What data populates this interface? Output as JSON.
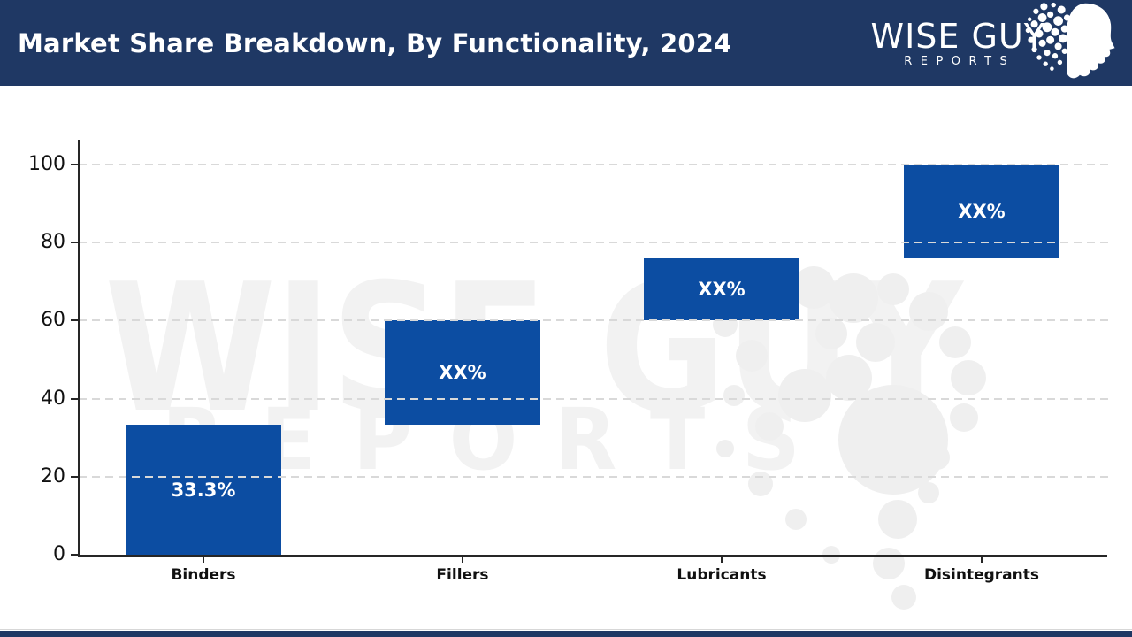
{
  "header": {
    "title": "Market Share Breakdown, By Functionality, 2024",
    "brand": {
      "line1": "WISE GUY",
      "line2": "REPORTS"
    }
  },
  "watermark": {
    "line1": "WISE GUY",
    "line2": "REPORTS"
  },
  "icons": {
    "logo_face": "dotted-face-profile",
    "watermark_face": "dotted-face-profile-light"
  },
  "colors": {
    "header_bg": "#1f3864",
    "footer_bg": "#1f3864",
    "bar": "#0c4da2",
    "bar_label": "#ffffff",
    "axis": "#262626",
    "tick_label": "#111111",
    "grid": "#d9d9d9",
    "watermark": "#f2f2f2",
    "title_text": "#ffffff"
  },
  "chart_data": {
    "type": "bar",
    "subtype": "waterfall",
    "title": "Market Share Breakdown, By Functionality, 2024",
    "categories": [
      "Binders",
      "Fillers",
      "Lubricants",
      "Disintegrants"
    ],
    "segments": [
      {
        "category": "Binders",
        "start": 0,
        "end": 33.3,
        "label": "33.3%"
      },
      {
        "category": "Fillers",
        "start": 33.3,
        "end": 60,
        "label": "XX%"
      },
      {
        "category": "Lubricants",
        "start": 60,
        "end": 76,
        "label": "XX%"
      },
      {
        "category": "Disintegrants",
        "start": 76,
        "end": 100,
        "label": "XX%"
      }
    ],
    "values_approx": [
      33.3,
      26.7,
      16,
      24
    ],
    "xlabel": "",
    "ylabel": "",
    "ylim": [
      0,
      100
    ],
    "yticks": [
      0,
      20,
      40,
      60,
      80,
      100
    ],
    "grid": "horizontal-dashed",
    "legend": "none"
  }
}
